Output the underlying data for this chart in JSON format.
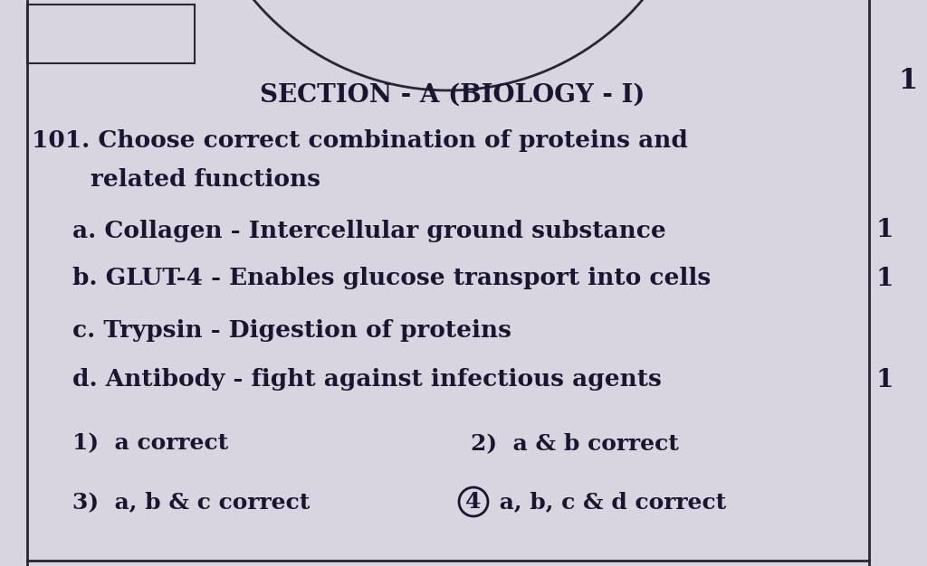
{
  "background_color": "#d8d4e0",
  "border_color": "#2a2535",
  "section_title": "SECTION - A (BIOLOGY - I)",
  "question_number": "101.",
  "question_text_line1": "Choose correct combination of proteins and",
  "question_text_line2": "related functions",
  "options": [
    "a. Collagen - Intercellular ground substance",
    "b. GLUT-4 - Enables glucose transport into cells",
    "c. Trypsin - Digestion of proteins",
    "d. Antibody - fight against infectious agents"
  ],
  "answers_row1_left": "1)  a correct",
  "answers_row1_right": "2)  a & b correct",
  "answers_row2_left": "3)  a, b & c correct",
  "answers_row2_right_num": "4",
  "answers_row2_right_text": " a, b, c & d correct",
  "right_col_numbers": [
    "1",
    "1",
    "1"
  ],
  "right_col_top": "1",
  "title_fontsize": 20,
  "question_fontsize": 19,
  "option_fontsize": 19,
  "answer_fontsize": 18,
  "text_color": "#1a1530"
}
